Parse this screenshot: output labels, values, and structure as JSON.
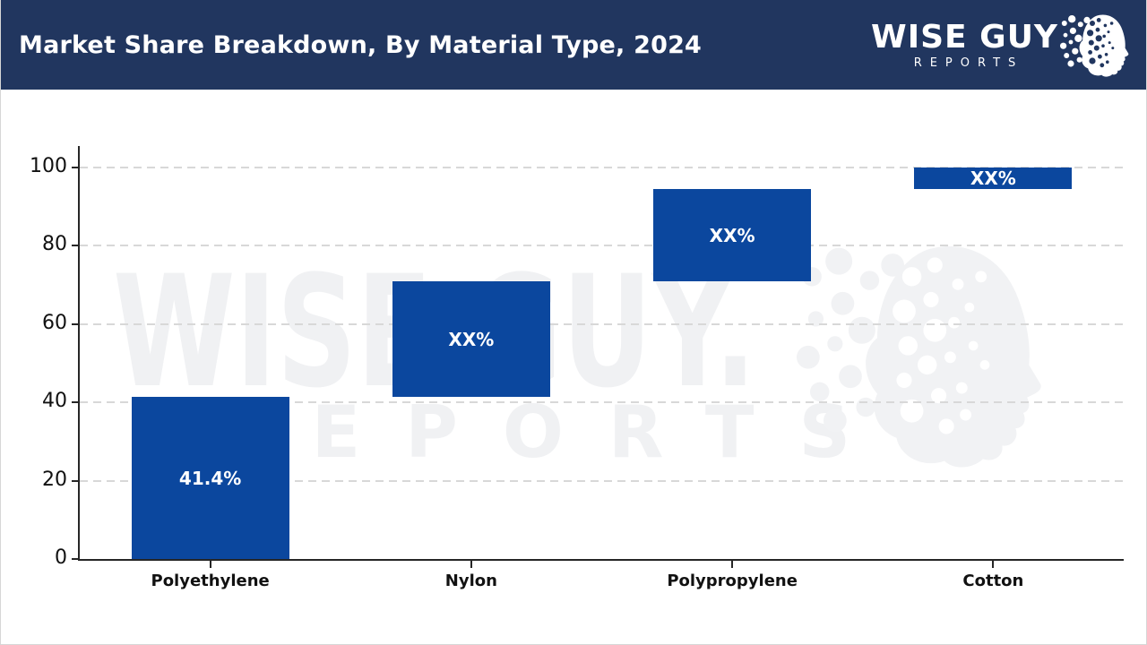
{
  "header": {
    "title": "Market Share Breakdown, By Material Type, 2024",
    "bg_color": "#21365f",
    "logo": {
      "line1": "WISE GUY",
      "line2": "REPORTS"
    }
  },
  "watermark": {
    "line1": "WISE GUY.",
    "line2": "REPORTS"
  },
  "chart_data": {
    "type": "bar",
    "subtype": "waterfall",
    "title": "Market Share Breakdown, By Material Type, 2024",
    "xlabel": "",
    "ylabel": "",
    "categories": [
      "Polyethylene",
      "Nylon",
      "Polypropylene",
      "Cotton"
    ],
    "segments": [
      {
        "category": "Polyethylene",
        "start": 0,
        "end": 41.4,
        "label": "41.4%"
      },
      {
        "category": "Nylon",
        "start": 41.4,
        "end": 70.9,
        "label": "XX%"
      },
      {
        "category": "Polypropylene",
        "start": 70.9,
        "end": 94.5,
        "label": "XX%"
      },
      {
        "category": "Cotton",
        "start": 94.5,
        "end": 100,
        "label": "XX%"
      }
    ],
    "yticks": [
      0,
      20,
      40,
      60,
      80,
      100
    ],
    "ylim": [
      0,
      105.5
    ],
    "bar_color": "#0b479e",
    "grid": "horizontal-dashed",
    "legend": "none"
  }
}
